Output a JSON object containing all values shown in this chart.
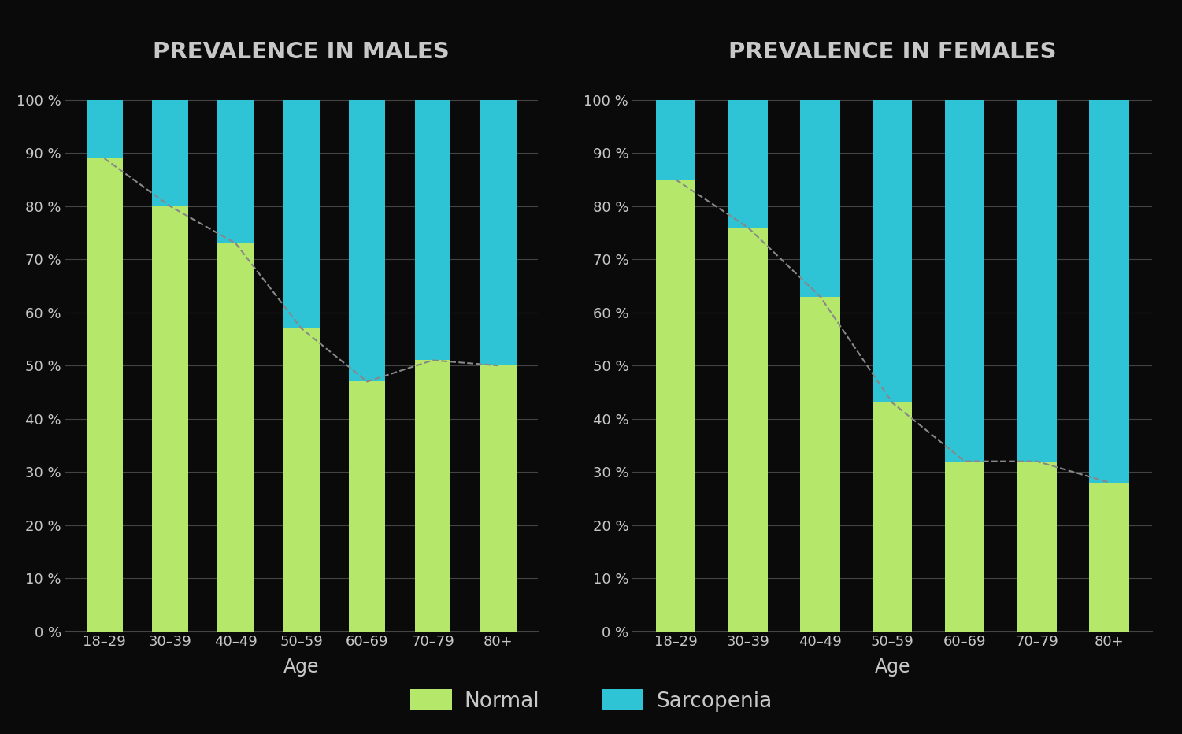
{
  "age_groups": [
    "18–29",
    "30–39",
    "40–49",
    "50–59",
    "60–69",
    "70–79",
    "80+"
  ],
  "males_normal": [
    89,
    80,
    73,
    57,
    47,
    51,
    50
  ],
  "females_normal": [
    85,
    76,
    63,
    43,
    32,
    32,
    28
  ],
  "color_normal": "#b5e86a",
  "color_sarcopenia": "#2ec4d6",
  "bg_color": "#0a0a0a",
  "text_color": "#c8c8c8",
  "title_males": "PREVALENCE IN MALES",
  "title_females": "PREVALENCE IN FEMALES",
  "xlabel": "Age",
  "legend_normal": "Normal",
  "legend_sarcopenia": "Sarcopenia",
  "grid_color": "#444444",
  "line_color": "#888888",
  "bar_width": 0.55,
  "title_fontsize": 21,
  "tick_fontsize": 13,
  "xlabel_fontsize": 17,
  "legend_fontsize": 19
}
